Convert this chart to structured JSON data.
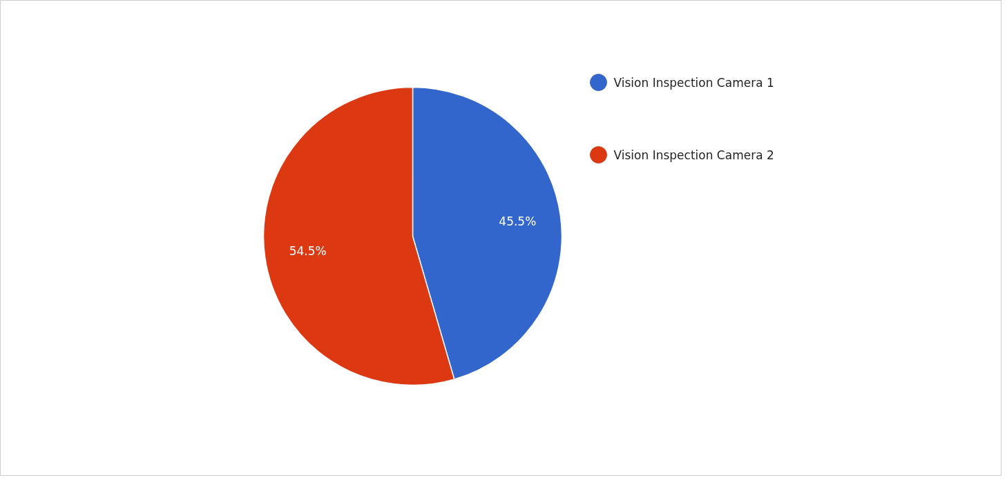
{
  "chart_data": {
    "type": "pie",
    "categories": [
      "Vision Inspection Camera 1",
      "Vision Inspection Camera 2"
    ],
    "values": [
      45.5,
      54.5
    ],
    "colors": [
      "#3366cc",
      "#dc3912"
    ],
    "value_labels": [
      "45.5%",
      "54.5%"
    ],
    "legend": "right"
  }
}
